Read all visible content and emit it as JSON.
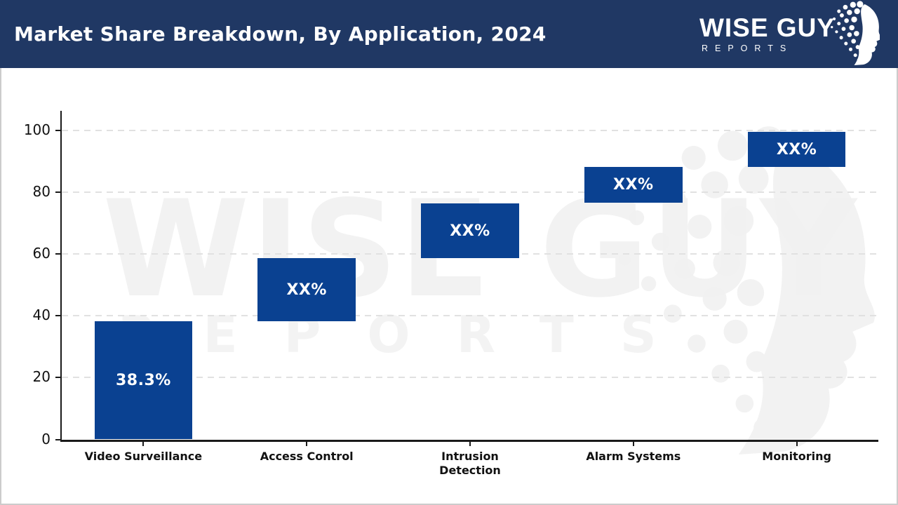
{
  "header": {
    "title": "Market Share Breakdown, By Application, 2024",
    "bg_color": "#203864",
    "logo": {
      "line1": "WISE GUY",
      "line2": "REPORTS"
    }
  },
  "watermark": {
    "line1": "WISE GUY",
    "line2": "REPORTS"
  },
  "chart_data": {
    "type": "bar",
    "subtype": "waterfall",
    "title": "Market Share Breakdown, By Application, 2024",
    "xlabel": "",
    "ylabel": "",
    "ylim": [
      0,
      106
    ],
    "y_ticks": [
      0,
      20,
      40,
      60,
      80,
      100
    ],
    "grid": true,
    "legend": false,
    "bar_color": "#0a4191",
    "categories": [
      "Video Surveillance",
      "Access Control",
      "Intrusion Detection",
      "Alarm Systems",
      "Monitoring"
    ],
    "categories_display": [
      "Video Surveillance",
      "Access Control",
      "Intrusion\nDetection",
      "Alarm Systems",
      "Monitoring"
    ],
    "segments": [
      {
        "category": "Video Surveillance",
        "start": 0,
        "end": 38.3,
        "label": "38.3%"
      },
      {
        "category": "Access Control",
        "start": 38.3,
        "end": 58.6,
        "label": "XX%"
      },
      {
        "category": "Intrusion Detection",
        "start": 58.6,
        "end": 76.4,
        "label": "XX%"
      },
      {
        "category": "Alarm Systems",
        "start": 76.6,
        "end": 88.2,
        "label": "XX%"
      },
      {
        "category": "Monitoring",
        "start": 88.2,
        "end": 99.5,
        "label": "XX%"
      }
    ]
  }
}
